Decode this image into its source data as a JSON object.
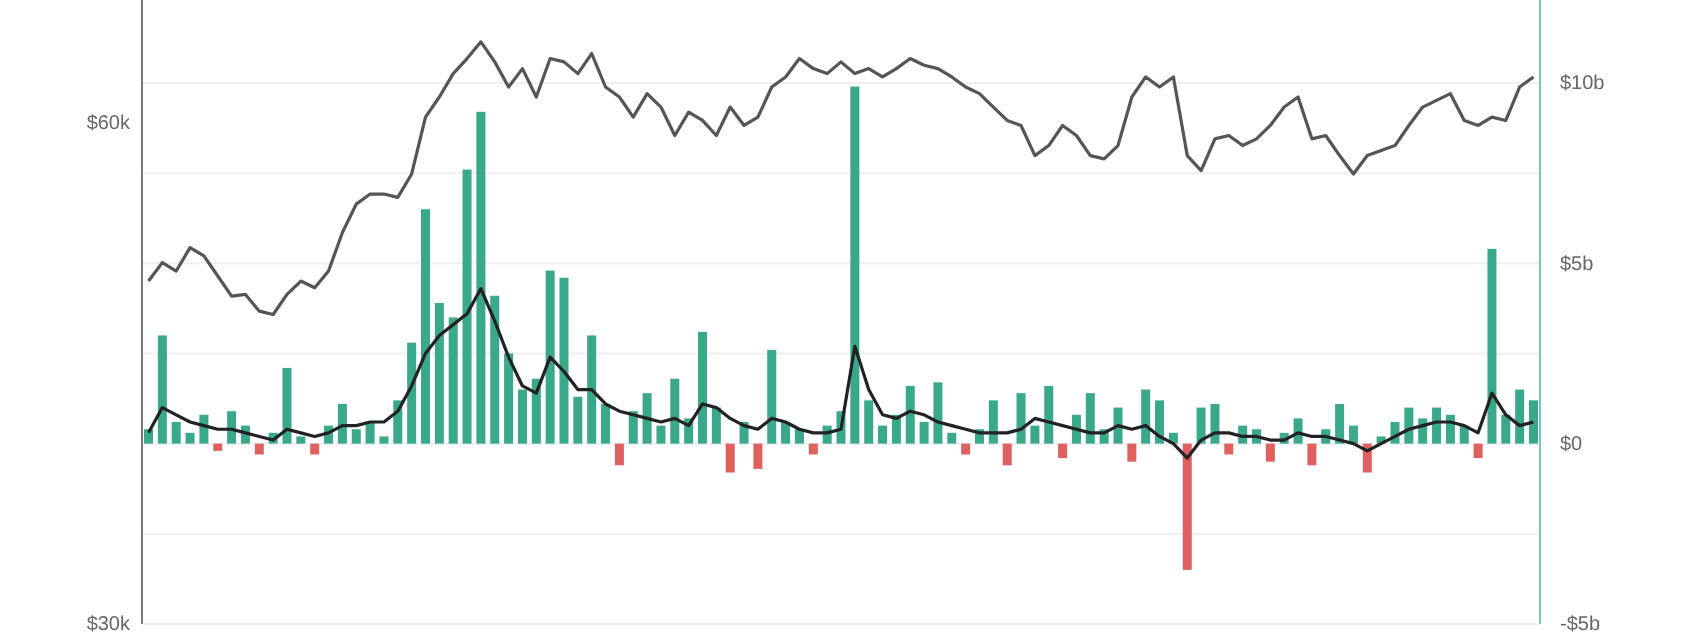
{
  "chart_data": {
    "type": "bar",
    "categories": [
      null,
      null,
      null,
      null,
      null,
      null,
      null,
      null,
      null,
      null,
      null,
      null,
      null,
      null,
      null,
      null,
      null,
      null,
      null,
      null,
      null,
      null,
      null,
      null,
      null,
      null,
      null,
      null,
      null,
      null,
      null,
      null,
      null,
      null,
      null,
      null,
      null,
      null,
      null,
      null,
      null,
      null,
      null,
      null,
      null,
      null,
      null,
      null,
      null,
      null,
      null,
      null,
      null,
      null,
      null,
      null,
      null,
      null,
      null,
      null,
      null,
      null,
      null,
      null,
      null,
      null,
      null,
      null,
      null,
      null,
      null,
      null,
      null,
      null,
      null,
      null,
      null,
      null,
      null,
      null,
      null,
      null,
      null,
      null,
      null,
      null,
      null,
      null,
      null,
      null,
      null,
      null,
      null,
      null,
      null,
      null,
      null,
      null,
      null,
      null,
      null
    ],
    "series": [
      {
        "type": "line",
        "axis": "y",
        "color": "#555555",
        "values": [
          50500,
          51600,
          51100,
          52500,
          52000,
          50800,
          49600,
          49700,
          48700,
          48500,
          49700,
          50500,
          50100,
          51100,
          53400,
          55100,
          55700,
          55700,
          55500,
          56900,
          60300,
          61500,
          62900,
          63800,
          64800,
          63600,
          62100,
          63200,
          61500,
          63800,
          63600,
          62900,
          64100,
          62100,
          61500,
          60300,
          61700,
          60900,
          59200,
          60600,
          60100,
          59200,
          60900,
          59800,
          60300,
          62100,
          62700,
          63800,
          63200,
          62900,
          63600,
          62900,
          63200,
          62700,
          63200,
          63800,
          63400,
          63200,
          62700,
          62100,
          61700,
          60900,
          60100,
          59800,
          58000,
          58600,
          59800,
          59200,
          58000,
          57800,
          58600,
          61500,
          62700,
          62100,
          62700,
          58000,
          57100,
          59000,
          59200,
          58600,
          59000,
          59800,
          60900,
          61500,
          59000,
          59200,
          58000,
          56900,
          58000,
          58300,
          58600,
          59800,
          60900,
          61300,
          61700,
          60100,
          59800,
          60300,
          60100,
          62100,
          62700
        ]
      },
      {
        "axis": "y2",
        "values": [
          0.4,
          3.0,
          0.6,
          0.3,
          0.8,
          -0.2,
          0.9,
          0.5,
          -0.3,
          0.3,
          2.1,
          0.2,
          -0.3,
          0.5,
          1.1,
          0.4,
          0.6,
          0.2,
          1.2,
          2.8,
          6.5,
          3.9,
          3.5,
          7.6,
          9.2,
          4.1,
          2.5,
          1.5,
          1.8,
          4.8,
          4.6,
          1.3,
          3.0,
          1.1,
          -0.6,
          0.9,
          1.4,
          0.5,
          1.8,
          0.7,
          3.1,
          1.0,
          -0.8,
          0.6,
          -0.7,
          2.6,
          0.6,
          0.4,
          -0.3,
          0.5,
          0.9,
          9.9,
          1.2,
          0.5,
          0.8,
          1.6,
          0.6,
          1.7,
          0.3,
          -0.3,
          0.4,
          1.2,
          -0.6,
          1.4,
          0.5,
          1.6,
          -0.4,
          0.8,
          1.4,
          0.4,
          1.0,
          -0.5,
          1.5,
          1.2,
          0.3,
          -3.5,
          1.0,
          1.1,
          -0.3,
          0.5,
          0.4,
          -0.5,
          0.3,
          0.7,
          -0.6,
          0.4,
          1.1,
          0.5,
          -0.8,
          0.2,
          0.6,
          1.0,
          0.7,
          1.0,
          0.8,
          0.5,
          -0.4,
          5.4,
          0.8,
          1.5,
          1.2
        ],
        "colors": [
          "#3aa88a",
          "#3aa88a",
          "#3aa88a",
          "#3aa88a",
          "#3aa88a",
          "#e06060",
          "#3aa88a",
          "#3aa88a",
          "#e06060",
          "#3aa88a",
          "#3aa88a",
          "#3aa88a",
          "#e06060",
          "#3aa88a",
          "#3aa88a",
          "#3aa88a",
          "#3aa88a",
          "#3aa88a",
          "#3aa88a",
          "#3aa88a",
          "#3aa88a",
          "#3aa88a",
          "#3aa88a",
          "#3aa88a",
          "#3aa88a",
          "#3aa88a",
          "#3aa88a",
          "#3aa88a",
          "#3aa88a",
          "#3aa88a",
          "#3aa88a",
          "#3aa88a",
          "#3aa88a",
          "#3aa88a",
          "#e06060",
          "#3aa88a",
          "#3aa88a",
          "#3aa88a",
          "#3aa88a",
          "#3aa88a",
          "#3aa88a",
          "#3aa88a",
          "#e06060",
          "#3aa88a",
          "#e06060",
          "#3aa88a",
          "#3aa88a",
          "#3aa88a",
          "#e06060",
          "#3aa88a",
          "#3aa88a",
          "#3aa88a",
          "#3aa88a",
          "#3aa88a",
          "#3aa88a",
          "#3aa88a",
          "#3aa88a",
          "#3aa88a",
          "#3aa88a",
          "#e06060",
          "#3aa88a",
          "#3aa88a",
          "#e06060",
          "#3aa88a",
          "#3aa88a",
          "#3aa88a",
          "#e06060",
          "#3aa88a",
          "#3aa88a",
          "#3aa88a",
          "#3aa88a",
          "#e06060",
          "#3aa88a",
          "#3aa88a",
          "#3aa88a",
          "#e06060",
          "#3aa88a",
          "#3aa88a",
          "#e06060",
          "#3aa88a",
          "#3aa88a",
          "#e06060",
          "#3aa88a",
          "#3aa88a",
          "#e06060",
          "#3aa88a",
          "#3aa88a",
          "#3aa88a",
          "#e06060",
          "#3aa88a",
          "#3aa88a",
          "#3aa88a",
          "#3aa88a",
          "#3aa88a",
          "#3aa88a",
          "#3aa88a",
          "#e06060",
          "#3aa88a",
          "#3aa88a",
          "#3aa88a",
          "#3aa88a"
        ]
      },
      {
        "type": "line",
        "axis": "y2",
        "color": "#222222",
        "values": [
          0.3,
          1.0,
          0.8,
          0.6,
          0.5,
          0.4,
          0.4,
          0.3,
          0.2,
          0.1,
          0.4,
          0.3,
          0.2,
          0.3,
          0.5,
          0.5,
          0.6,
          0.6,
          0.9,
          1.6,
          2.5,
          3.0,
          3.3,
          3.6,
          4.3,
          3.4,
          2.4,
          1.6,
          1.4,
          2.4,
          2.0,
          1.5,
          1.5,
          1.1,
          0.9,
          0.8,
          0.7,
          0.6,
          0.7,
          0.5,
          1.1,
          1.0,
          0.7,
          0.5,
          0.4,
          0.7,
          0.6,
          0.4,
          0.3,
          0.3,
          0.4,
          2.7,
          1.5,
          0.8,
          0.7,
          0.9,
          0.8,
          0.6,
          0.5,
          0.4,
          0.3,
          0.3,
          0.3,
          0.4,
          0.7,
          0.6,
          0.5,
          0.4,
          0.3,
          0.3,
          0.5,
          0.4,
          0.5,
          0.2,
          0.0,
          -0.4,
          0.1,
          0.3,
          0.3,
          0.2,
          0.2,
          0.1,
          0.1,
          0.3,
          0.2,
          0.2,
          0.1,
          0.0,
          -0.2,
          0.0,
          0.2,
          0.4,
          0.5,
          0.6,
          0.6,
          0.5,
          0.3,
          1.4,
          0.8,
          0.5,
          0.6
        ]
      }
    ],
    "ylim": [
      30000,
      67300
    ],
    "yticks": [
      {
        "value": 60000,
        "label": "$60k"
      },
      {
        "value": 30000,
        "label": "$30k"
      }
    ],
    "y2lim": [
      -5,
      12.3
    ],
    "y2ticks": [
      {
        "value": 10,
        "label": "$10b"
      },
      {
        "value": 7.5,
        "label": null
      },
      {
        "value": 5,
        "label": "$5b"
      },
      {
        "value": 2.5,
        "label": null
      },
      {
        "value": 0,
        "label": "$0"
      },
      {
        "value": -2.5,
        "label": null
      },
      {
        "value": -5,
        "label": "-$5b"
      }
    ],
    "grid": true,
    "tick_labels": "y",
    "marker": "none",
    "line_style": "solid"
  }
}
